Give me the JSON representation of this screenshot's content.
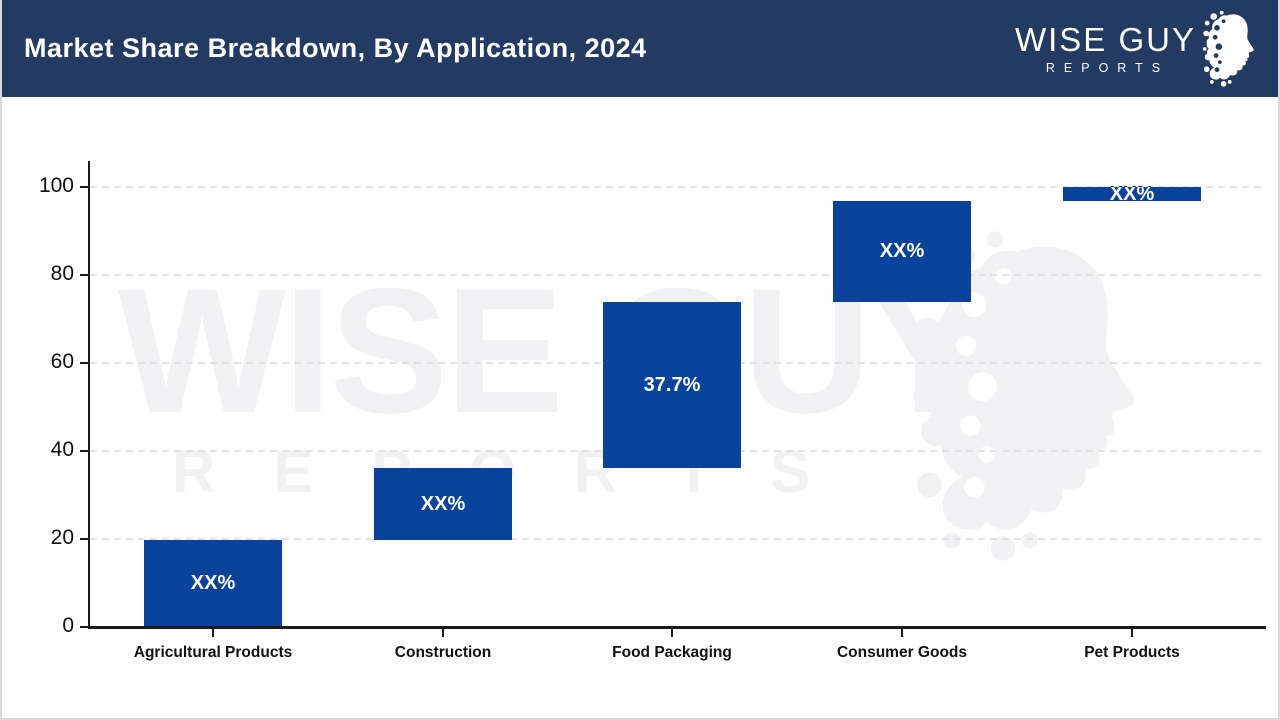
{
  "header": {
    "title": "Market Share Breakdown, By Application, 2024",
    "logo": {
      "brand": "WISE GUY",
      "sub": "REPORTS"
    }
  },
  "watermark": {
    "brand": "WISE GUY",
    "sub": "REPORTS"
  },
  "chart_data": {
    "type": "bar",
    "subtype": "waterfall",
    "title": "Market Share Breakdown, By Application, 2024",
    "categories": [
      "Agricultural Products",
      "Construction",
      "Food Packaging",
      "Consumer Goods",
      "Pet Products"
    ],
    "bars": [
      {
        "category": "Agricultural Products",
        "start": 0,
        "end": 19.8,
        "label": "XX%"
      },
      {
        "category": "Construction",
        "start": 19.8,
        "end": 36.1,
        "label": "XX%"
      },
      {
        "category": "Food Packaging",
        "start": 36.1,
        "end": 73.8,
        "label": "37.7%"
      },
      {
        "category": "Consumer Goods",
        "start": 73.8,
        "end": 96.8,
        "label": "XX%"
      },
      {
        "category": "Pet Products",
        "start": 96.8,
        "end": 100,
        "label": "XX%"
      }
    ],
    "xlabel": "",
    "ylabel": "",
    "ylim": [
      0,
      100
    ],
    "yticks": [
      0,
      20,
      40,
      60,
      80,
      100
    ],
    "grid": "horizontal-dashed",
    "legend": "none"
  },
  "colors": {
    "header_bg": "#233a62",
    "bar": "#09439b",
    "bar_label": "#ffffff",
    "spill_label": "#000000",
    "axis": "#1a1a1a",
    "grid": "#e2e2e4",
    "tick_label": "#111111",
    "watermark": "#f1f1f4",
    "logo_text": "#ffffff",
    "frame": "#d9d9d9"
  }
}
